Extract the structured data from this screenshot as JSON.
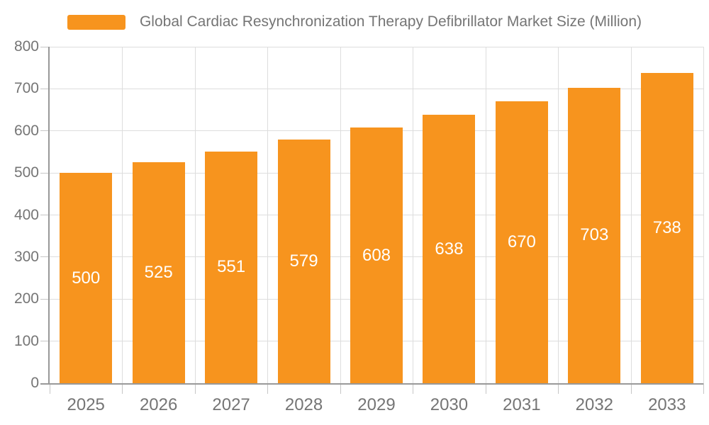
{
  "legend": {
    "label": "Global Cardiac Resynchronization Therapy Defibrillator Market Size (Million)"
  },
  "chart_data": {
    "type": "bar",
    "title": "Global Cardiac Resynchronization Therapy Defibrillator Market Size (Million)",
    "series_name": "Global Cardiac Resynchronization Therapy Defibrillator Market Size (Million)",
    "categories": [
      "2025",
      "2026",
      "2027",
      "2028",
      "2029",
      "2030",
      "2031",
      "2032",
      "2033"
    ],
    "values": [
      500,
      525,
      551,
      579,
      608,
      638,
      670,
      703,
      738
    ],
    "xlabel": "",
    "ylabel": "",
    "ylim": [
      0,
      800
    ],
    "yticks": [
      0,
      100,
      200,
      300,
      400,
      500,
      600,
      700,
      800
    ],
    "value_labels_visible": true,
    "grid": true,
    "legend_position": "top-center",
    "colors": {
      "bar": "#F7941E",
      "value_label": "#FFFFFF",
      "axis_label": "#757575",
      "legend_text": "#757575",
      "grid_line": "#DDDDDD",
      "axis_line": "#999999",
      "tick_line": "#C6C6C6",
      "background": "#FFFFFF"
    }
  }
}
